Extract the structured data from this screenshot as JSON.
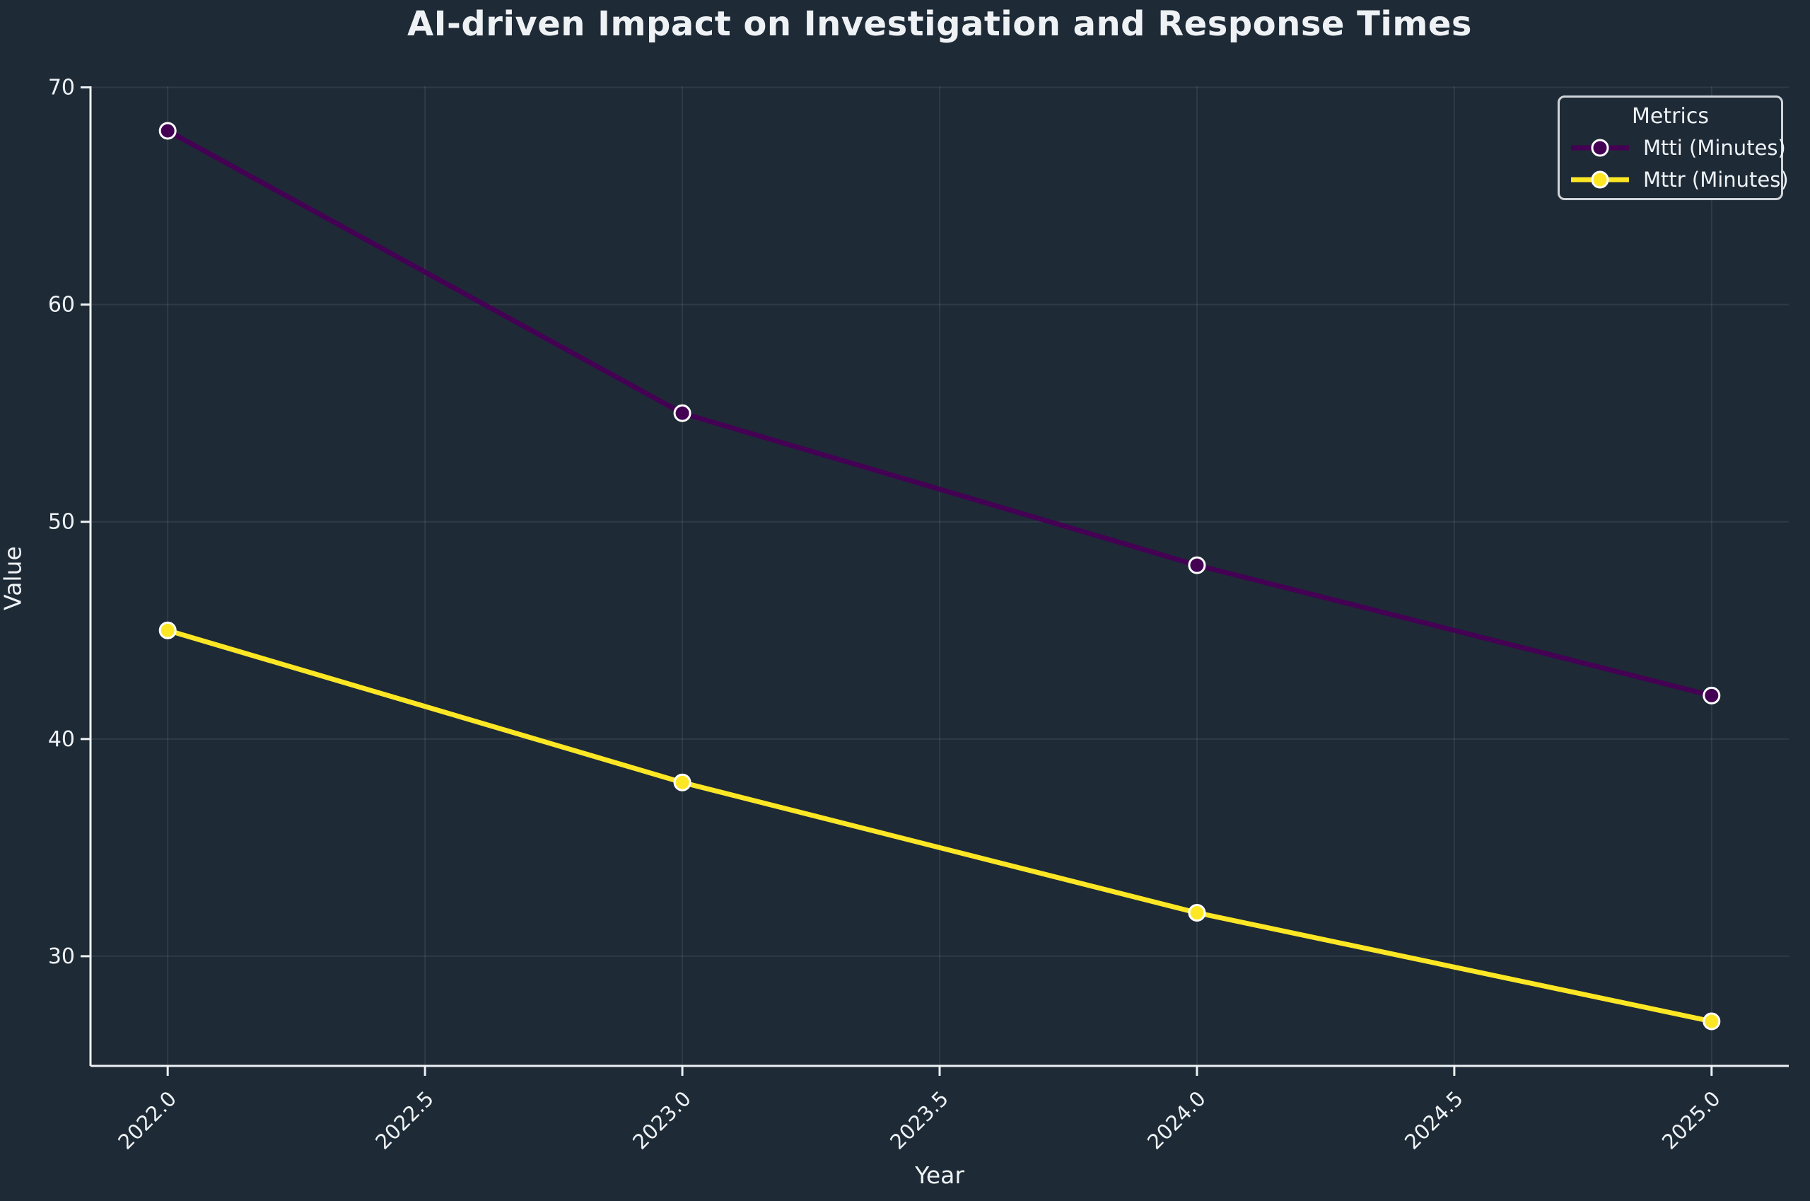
{
  "chart_data": {
    "type": "line",
    "title": "AI-driven Impact on Investigation and Response Times",
    "xlabel": "Year",
    "ylabel": "Value",
    "x": [
      2022,
      2023,
      2024,
      2025
    ],
    "series": [
      {
        "name": "Mtti (Minutes)",
        "color": "#440154",
        "marker": "open-circle",
        "values": [
          68,
          55,
          48,
          42
        ]
      },
      {
        "name": "Mttr (Minutes)",
        "color": "#fde725",
        "marker": "filled-circle",
        "values": [
          45,
          38,
          32,
          27
        ]
      }
    ],
    "legend": {
      "title": "Metrics",
      "position": "upper-right"
    },
    "x_tick_labels": [
      "2022.0",
      "2022.5",
      "2023.0",
      "2023.5",
      "2024.0",
      "2024.5",
      "2025.0"
    ],
    "x_tick_values": [
      2022,
      2022.5,
      2023,
      2023.5,
      2024,
      2024.5,
      2025
    ],
    "y_tick_values": [
      30,
      40,
      50,
      60,
      70
    ],
    "xlim": [
      2021.85,
      2025.15
    ],
    "ylim": [
      24.95,
      70.05
    ],
    "grid": true,
    "x_tick_rotation_deg": 45,
    "colors": {
      "background": "#1e2a36",
      "text": "#eef2f5",
      "grid": "rgba(255,255,255,0.08)",
      "spine": "#eef2f5",
      "marker_edge": "#ffffff",
      "legend_border": "#cfd4d9"
    }
  }
}
